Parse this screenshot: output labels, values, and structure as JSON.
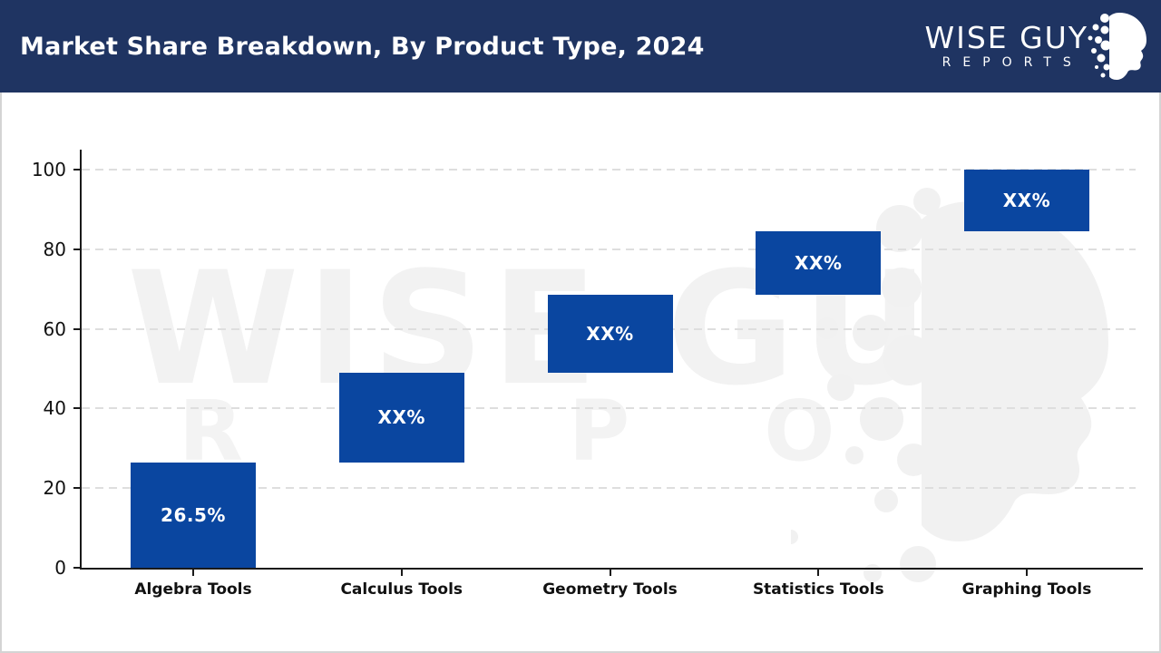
{
  "header": {
    "title": "Market Share Breakdown, By Product Type, 2024",
    "logo": {
      "line1": "WISE GUY",
      "line2": "REPORTS"
    }
  },
  "watermark": {
    "line1": "WISE GUY",
    "line2": "REPORTS"
  },
  "colors": {
    "header_bg": "#1f3462",
    "bar": "#0a46a0",
    "bar_label": "#ffffff",
    "gridline": "#dedede",
    "axis": "#1a1a1a",
    "watermark": "#f2f2f2"
  },
  "chart_data": {
    "type": "bar",
    "subtype": "waterfall",
    "title": "Market Share Breakdown, By Product Type, 2024",
    "xlabel": "",
    "ylabel": "",
    "categories": [
      "Algebra Tools",
      "Calculus Tools",
      "Geometry Tools",
      "Statistics Tools",
      "Graphing Tools"
    ],
    "segments": [
      {
        "category": "Algebra Tools",
        "start": 0,
        "end": 26.5,
        "label": "26.5%"
      },
      {
        "category": "Calculus Tools",
        "start": 26.5,
        "end": 49,
        "label": "XX%"
      },
      {
        "category": "Geometry Tools",
        "start": 49,
        "end": 68.5,
        "label": "XX%"
      },
      {
        "category": "Statistics Tools",
        "start": 68.5,
        "end": 84.5,
        "label": "XX%"
      },
      {
        "category": "Graphing Tools",
        "start": 84.5,
        "end": 100,
        "label": "XX%"
      }
    ],
    "yticks": [
      0,
      20,
      40,
      60,
      80,
      100
    ],
    "ylim": [
      0,
      105
    ],
    "grid": "dashed-horizontal",
    "legend": "none",
    "bar_color": "#0a46a0",
    "label_color": "#ffffff"
  }
}
